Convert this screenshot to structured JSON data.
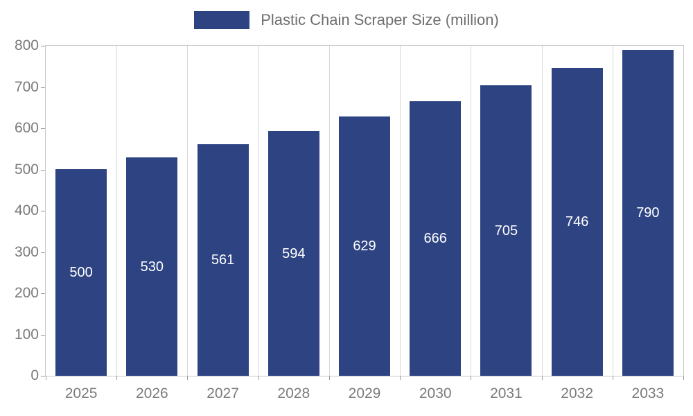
{
  "legend": {
    "label": "Plastic Chain Scraper Size (million)"
  },
  "chart_data": {
    "type": "bar",
    "title": "Plastic Chain Scraper Size (million)",
    "categories": [
      "2025",
      "2026",
      "2027",
      "2028",
      "2029",
      "2030",
      "2031",
      "2032",
      "2033"
    ],
    "values": [
      500,
      530,
      561,
      594,
      629,
      666,
      705,
      746,
      790
    ],
    "xlabel": "",
    "ylabel": "",
    "ylim": [
      0,
      800
    ],
    "ytick_step": 100,
    "grid": "vertical-only",
    "legend_position": "top-center",
    "bar_color": "#2E4482",
    "value_label_color": "#ffffff",
    "axis_text_color": "#7a7a7a",
    "grid_color": "#d9d9d9"
  }
}
